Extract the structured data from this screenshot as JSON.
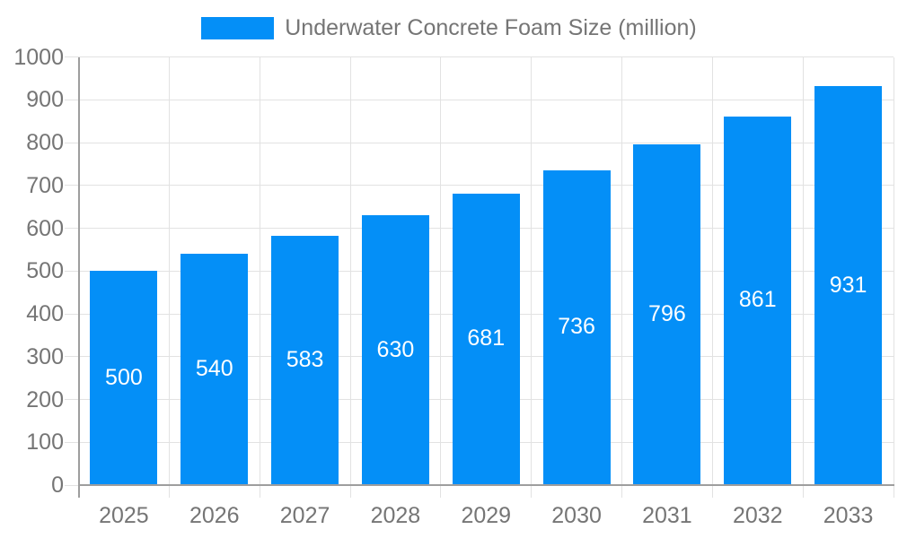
{
  "chart_data": {
    "type": "bar",
    "title": "Underwater Concrete Foam Size (million)",
    "categories": [
      "2025",
      "2026",
      "2027",
      "2028",
      "2029",
      "2030",
      "2031",
      "2032",
      "2033"
    ],
    "series": [
      {
        "name": "Underwater Concrete Foam Size (million)",
        "values": [
          500,
          540,
          583,
          630,
          681,
          736,
          796,
          861,
          931
        ]
      }
    ],
    "bar_value_labels": [
      "500",
      "540",
      "583",
      "630",
      "681",
      "736",
      "796",
      "861",
      "931"
    ],
    "xlabel": "",
    "ylabel": "",
    "ylim": [
      0,
      1000
    ],
    "ytick_step": 100,
    "ytick_labels": [
      "0",
      "100",
      "200",
      "300",
      "400",
      "500",
      "600",
      "700",
      "800",
      "900",
      "1000"
    ],
    "grid": true,
    "legend_position": "top"
  },
  "legend": {
    "label": "Underwater Concrete Foam Size (million)"
  },
  "colors": {
    "bar": "#048FF7",
    "bar_value_text": "#FFFFFF",
    "axis_label_text": "#757575",
    "legend_text": "#757575",
    "gridline": "#E2E2E2",
    "axis_line": "#9E9E9E",
    "background": "#FFFFFF"
  }
}
